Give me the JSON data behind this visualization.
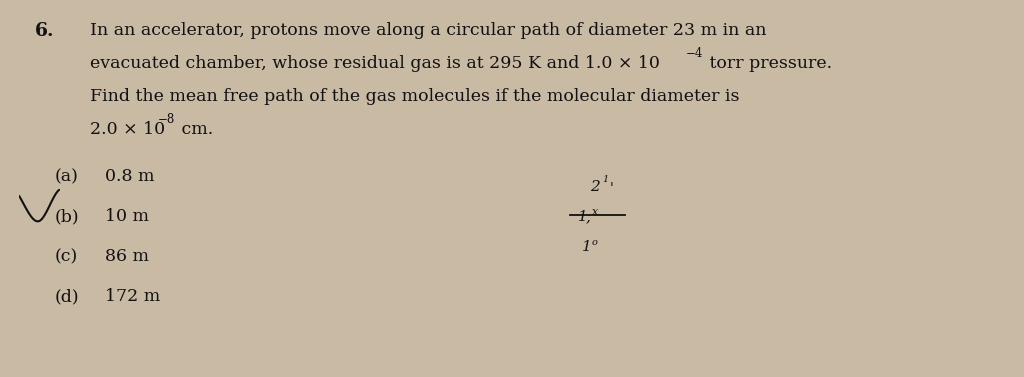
{
  "background_color": "#c9baa3",
  "question_number": "6.",
  "line1": "In an accelerator, protons move along a circular path of diameter 23 m in an",
  "line2a": "evacuated chamber, whose residual gas is at 295 K and 1.0 × 10",
  "line2_sup": "−4",
  "line2b": " torr pressure.",
  "line3": "Find the mean free path of the gas molecules if the molecular diameter is",
  "line4a": "2.0 × 10",
  "line4_sup": "−8",
  "line4b": " cm.",
  "opt_a_label": "(a)",
  "opt_a_val": "0.8 m",
  "opt_b_label": "(b)",
  "opt_b_val": "10 m",
  "opt_c_label": "(c)",
  "opt_c_val": "86 m",
  "opt_d_label": "(d)",
  "opt_d_val": "172 m",
  "text_color": "#111111",
  "fs": 12.5,
  "fs_super": 8.5,
  "fs_num": 13.5
}
